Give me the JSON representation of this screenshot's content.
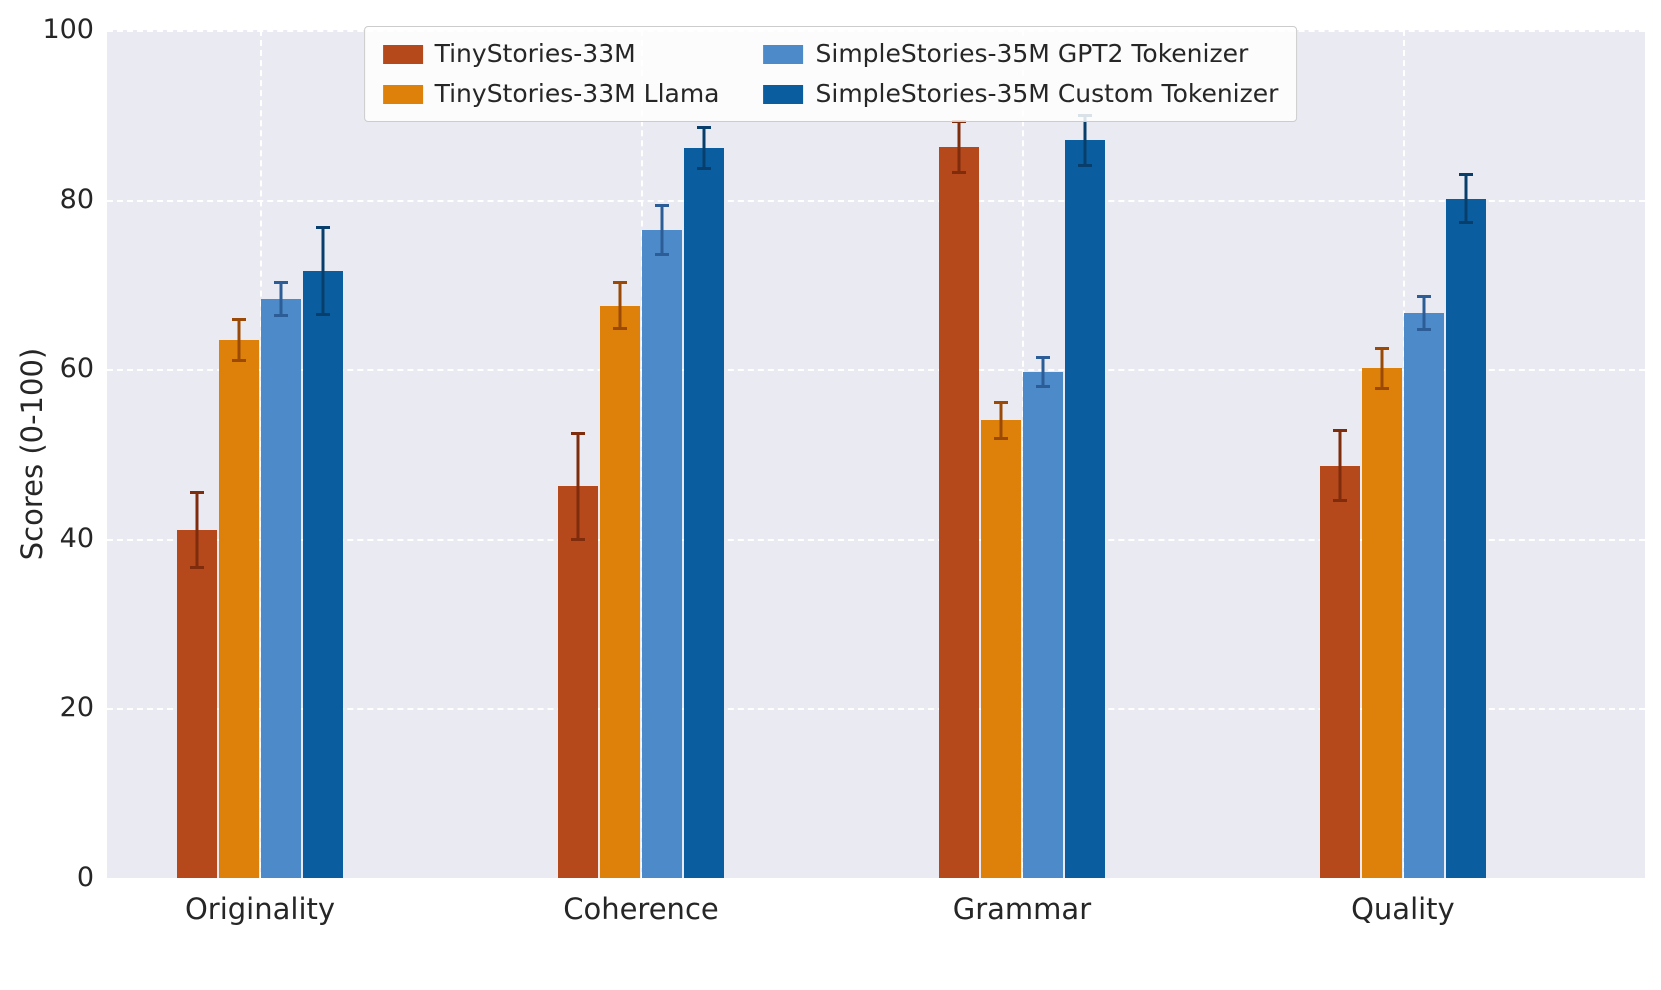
{
  "chart_data": {
    "type": "bar",
    "title": "",
    "xlabel": "",
    "ylabel": "Scores (0-100)",
    "ylim": [
      0,
      100
    ],
    "yticks": [
      0,
      20,
      40,
      60,
      80,
      100
    ],
    "categories": [
      "Originality",
      "Coherence",
      "Grammar",
      "Quality"
    ],
    "series": [
      {
        "name": "TinyStories-33M",
        "color": "#b5491c",
        "error_color": "#7f2c0d",
        "values": [
          41.0,
          46.2,
          86.2,
          48.6
        ],
        "errors": [
          4.6,
          6.4,
          3.2,
          4.3
        ]
      },
      {
        "name": "TinyStories-33M Llama",
        "color": "#de810b",
        "error_color": "#9a4a06",
        "values": [
          63.4,
          67.5,
          54.0,
          60.1
        ],
        "errors": [
          2.6,
          2.9,
          2.3,
          2.5
        ]
      },
      {
        "name": "SimpleStories-35M GPT2 Tokenizer",
        "color": "#4d8ac9",
        "error_color": "#2c5d97",
        "values": [
          68.3,
          76.4,
          59.7,
          66.6
        ],
        "errors": [
          2.1,
          3.1,
          1.9,
          2.1
        ]
      },
      {
        "name": "SimpleStories-35M Custom Tokenizer",
        "color": "#0a5d9e",
        "error_color": "#083e6b",
        "values": [
          71.6,
          86.1,
          87.0,
          80.1
        ],
        "errors": [
          5.3,
          2.6,
          3.1,
          3.0
        ]
      }
    ],
    "legend_position": "upper center",
    "grid": {
      "horizontal": true,
      "vertical": true,
      "style": "dashed",
      "color": "#ffffff"
    },
    "plot_background": "#eaeaf2",
    "figure_background": "#ffffff",
    "tick_color": "#262626"
  }
}
